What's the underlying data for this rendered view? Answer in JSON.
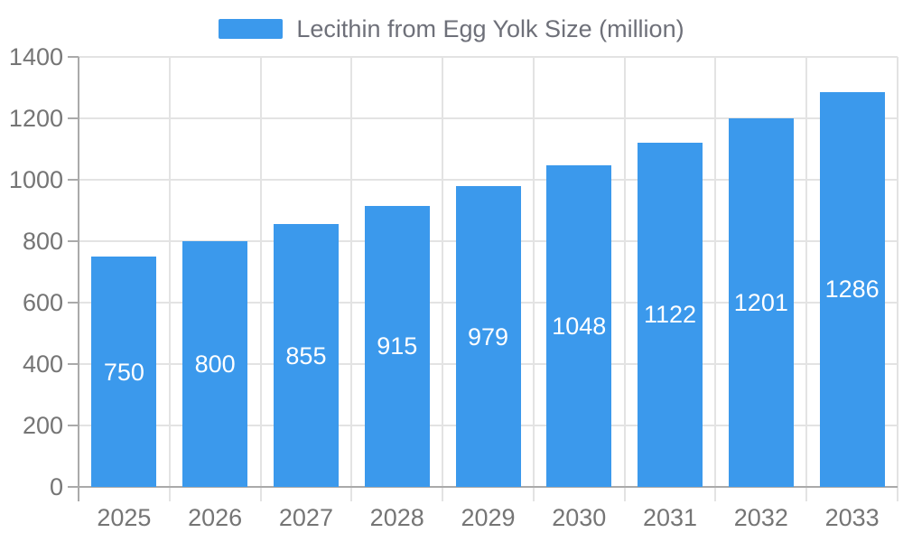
{
  "chart_data": {
    "type": "bar",
    "title": "Lecithin from Egg Yolk Size (million)",
    "series_name": "Lecithin from Egg Yolk Size (million)",
    "categories": [
      "2025",
      "2026",
      "2027",
      "2028",
      "2029",
      "2030",
      "2031",
      "2032",
      "2033"
    ],
    "values": [
      750,
      800,
      855,
      915,
      979,
      1048,
      1122,
      1201,
      1286
    ],
    "xlabel": "",
    "ylabel": "",
    "ylim": [
      0,
      1400
    ],
    "yticks": [
      0,
      200,
      400,
      600,
      800,
      1000,
      1200,
      1400
    ],
    "grid": true,
    "legend_position": "top-center",
    "value_label_position": "inside-center",
    "colors": {
      "bar": "#3B99EC",
      "grid": "#E3E3E3",
      "axis": "#AAAAAA",
      "tick_label": "#757575",
      "legend_text": "#6E7079",
      "value_label": "#FFFFFF",
      "background": "#FFFFFF"
    }
  }
}
